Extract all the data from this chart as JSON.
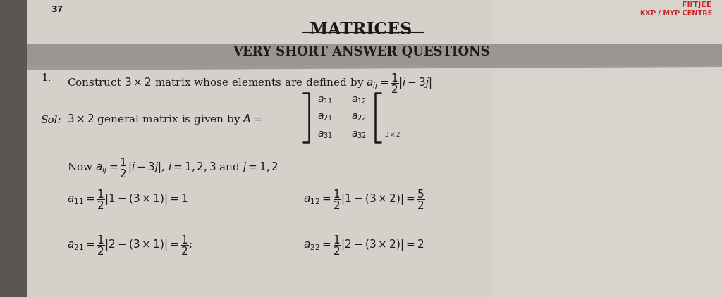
{
  "title": "MATRICES",
  "subtitle": "VERY SHORT ANSWER QUESTIONS",
  "bg_outer": "#7a7570",
  "bg_left_strip": "#6a6560",
  "bg_page": "#d8d3ce",
  "header_band_color": "#9a9590",
  "header_text_color": "#1a1a1a",
  "text_color": "#1a1a1a",
  "fiitjee_color": "#cc2222",
  "page_number": "37",
  "question_number": "1.",
  "sol_label": "Sol:",
  "q1": "Construct $3\\times 2$ matrix whose elements are defined by $a_{ij}=\\dfrac{1}{2}|i-3j|$",
  "sol_text": "$3\\times 2$ general matrix is given by $A=$",
  "now_line": "Now $a_{ij}=\\dfrac{1}{2}|i-3j|$, $i=1,2,3$ and $j=1,2$",
  "a11_expr": "$a_{11}=\\dfrac{1}{2}|1-(3\\times 1)|=1$",
  "a12_expr": "$a_{12}=\\dfrac{1}{2}|1-(3\\times 2)|=\\dfrac{5}{2}$",
  "a21_expr": "$a_{21}=\\dfrac{1}{2}|2-(3\\times 1)|=\\dfrac{1}{2}$;",
  "a22_expr": "$a_{22}=\\dfrac{1}{2}|2-(3\\times 2)|=2$",
  "matrix_labels": [
    [
      "$a_{11}$",
      "$a_{12}$"
    ],
    [
      "$a_{21}$",
      "$a_{22}$"
    ],
    [
      "$a_{31}$",
      "$a_{32}$"
    ]
  ],
  "subscript_32": "$_{3\\times 2}$",
  "fiitjee_line1": "FIITJEE",
  "fiitjee_line2": "KKP / MYP CENTRE"
}
